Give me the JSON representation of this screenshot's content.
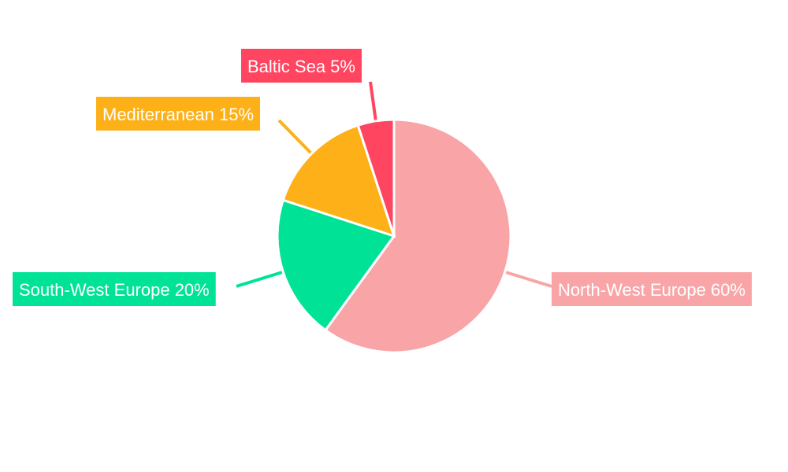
{
  "chart_data": {
    "type": "pie",
    "title": "",
    "categories": [
      "North-West Europe",
      "South-West Europe",
      "Mediterranean",
      "Baltic Sea"
    ],
    "values": [
      60,
      20,
      15,
      5
    ],
    "labels": [
      "North-West Europe 60%",
      "South-West Europe 20%",
      "Mediterranean 15%",
      "Baltic Sea 5%"
    ],
    "colors": [
      "#f9a5a7",
      "#00e396",
      "#feb019",
      "#ff4560"
    ],
    "start_angle": 0,
    "direction": "clockwise",
    "legend": "none"
  }
}
